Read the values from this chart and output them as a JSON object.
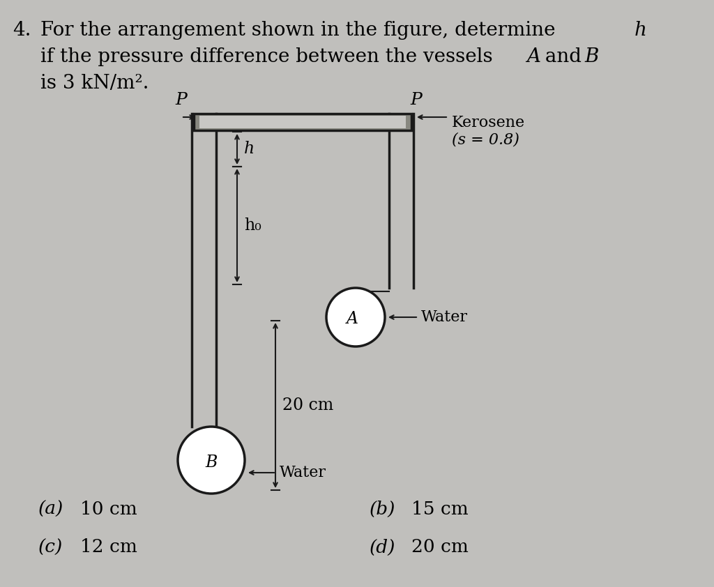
{
  "bg_color": "#c0bfbc",
  "pipe_color": "#1a1a1a",
  "pipe_fill": "#888880",
  "pipe_inner_fill": "#c8c7c4",
  "vessel_fill": "#ffffff",
  "kerosene_label": "Kerosene",
  "kerosene_s": "(s = 0.8)",
  "water_label_A": "Water",
  "water_label_B": "Water",
  "vessel_A_label": "A",
  "vessel_B_label": "B",
  "dim_20cm": "20 cm",
  "dim_h": "h",
  "dim_h0": "h₀",
  "P_label": "P",
  "line1_pre": "For the arrangement shown in the figure, determine ",
  "line1_italic": "h",
  "line2_pre": "if the pressure difference between the vessels ",
  "line2_A": "A",
  "line2_mid": " and ",
  "line2_B": "B",
  "line3": "is 3 kN/m².",
  "number": "4.",
  "font_size_title": 20,
  "font_size_diagram": 16,
  "font_size_choices": 19
}
